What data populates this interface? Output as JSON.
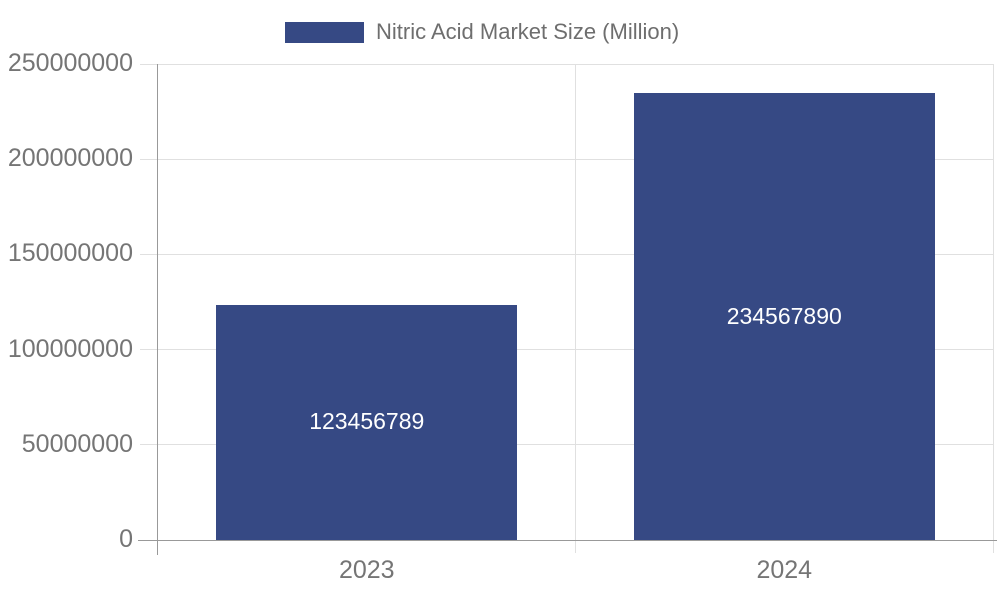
{
  "legend": {
    "series_label": "Nitric Acid Market Size (Million)"
  },
  "chart_data": {
    "type": "bar",
    "title": "Nitric Acid Market Size (Million)",
    "categories": [
      "2023",
      "2024"
    ],
    "values": [
      123456789,
      234567890
    ],
    "value_labels": [
      "123456789",
      "234567890"
    ],
    "ylim": [
      0,
      250000000
    ],
    "yticks": [
      0,
      50000000,
      100000000,
      150000000,
      200000000,
      250000000
    ],
    "ytick_labels": [
      "0",
      "50000000",
      "100000000",
      "150000000",
      "200000000",
      "250000000"
    ],
    "xlabel": "",
    "ylabel": "",
    "grid": true,
    "legend_position": "top"
  },
  "colors": {
    "bar": "#364984",
    "legend_swatch": "#364984",
    "gridline": "#e0e0e0",
    "axis_line": "#999999",
    "tick_label": "#757575",
    "legend_text": "#6e6e6e",
    "bar_label": "#ffffff",
    "background": "#ffffff"
  }
}
